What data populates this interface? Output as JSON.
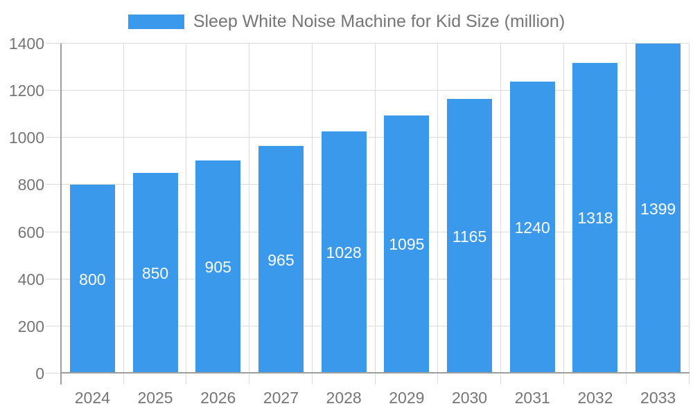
{
  "chart_data": {
    "type": "bar",
    "title": "Sleep White Noise Machine for Kid Size (million)",
    "categories": [
      "2024",
      "2025",
      "2026",
      "2027",
      "2028",
      "2029",
      "2030",
      "2031",
      "2032",
      "2033"
    ],
    "values": [
      800,
      850,
      905,
      965,
      1028,
      1095,
      1165,
      1240,
      1318,
      1399
    ],
    "xlabel": "",
    "ylabel": "",
    "ylim": [
      0,
      1400
    ],
    "yticks": [
      0,
      200,
      400,
      600,
      800,
      1000,
      1200,
      1400
    ],
    "grid": true,
    "legend_position": "top-center",
    "value_labels": "inside-bar-at-half-height",
    "colors": {
      "bar": "#3B99EC",
      "bar_value_label": "#FFFFFF",
      "axis_line": "#9E9E9E",
      "gridline": "#DCDCDC",
      "tick_label": "#757575",
      "legend_text": "#757575",
      "background": "#FFFFFF"
    }
  }
}
